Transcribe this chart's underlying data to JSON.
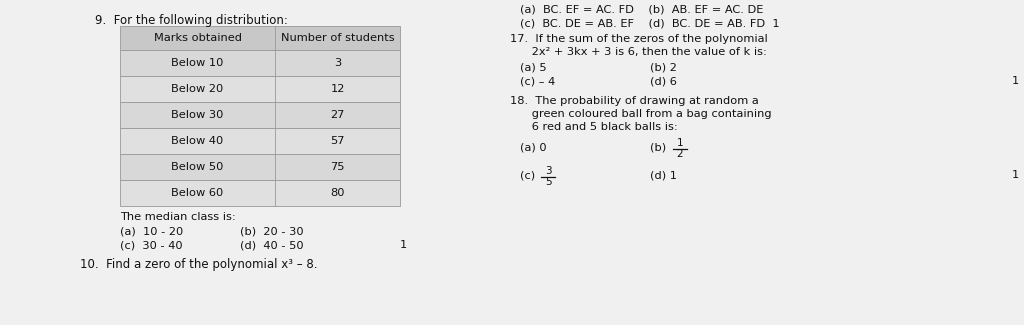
{
  "bg_color": "#e8e8e8",
  "page_bg": "#f0f0f0",
  "text_color": "#111111",
  "table_header_bg": "#c8c8c8",
  "table_row_bg1": "#d8d8d8",
  "table_row_bg2": "#e0e0e0",
  "q9_title": "9.  For the following distribution:",
  "table_headers": [
    "Marks obtained",
    "Number of students"
  ],
  "table_rows": [
    [
      "Below 10",
      "3"
    ],
    [
      "Below 20",
      "12"
    ],
    [
      "Below 30",
      "27"
    ],
    [
      "Below 40",
      "57"
    ],
    [
      "Below 50",
      "75"
    ],
    [
      "Below 60",
      "80"
    ]
  ],
  "q9_sub": "The median class is:",
  "q9_opt_a": "(a)  10 - 20",
  "q9_opt_b": "(b)  20 - 30",
  "q9_opt_c": "(c)  30 - 40",
  "q9_opt_d": "(d)  40 - 50",
  "q9_mark": "1",
  "q10_title": "10.  Find a zero of the polynomial x³ – 8.",
  "right_line1": "(a)  BC. EF = AC. FD    (b)  AB. EF = AC. DE",
  "right_line2": "(c)  BC. DE = AB. EF    (d)  BC. DE = AB. FD  1",
  "q17_title": "17.  If the sum of the zeros of the polynomial",
  "q17_line2": "      2x² + 3kx + 3 is 6, then the value of k is:",
  "q17_opt_a": "(a) 5",
  "q17_opt_b": "(b) 2",
  "q17_opt_c": "(c) – 4",
  "q17_opt_d": "(d) 6",
  "q17_mark": "1",
  "q18_title": "18.  The probability of drawing at random a",
  "q18_line2": "      green coloured ball from a bag containing",
  "q18_line3": "      6 red and 5 black balls is:",
  "q18_opt_a": "(a) 0",
  "q18_opt_b": "(b)",
  "q18_opt_c": "(c)",
  "q18_opt_d": "(d) 1",
  "q18_mark": "1"
}
